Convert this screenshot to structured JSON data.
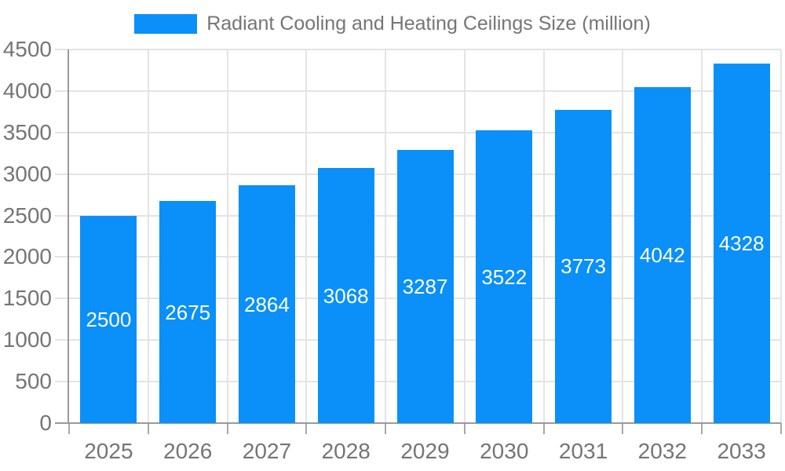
{
  "legend": {
    "label": "Radiant Cooling and Heating Ceilings Size (million)"
  },
  "chart_data": {
    "type": "bar",
    "title": "Radiant Cooling and Heating Ceilings Size (million)",
    "categories": [
      "2025",
      "2026",
      "2027",
      "2028",
      "2029",
      "2030",
      "2031",
      "2032",
      "2033"
    ],
    "values": [
      2500,
      2675,
      2864,
      3068,
      3287,
      3522,
      3773,
      4042,
      4328
    ],
    "xlabel": "",
    "ylabel": "",
    "ylim": [
      0,
      4500
    ],
    "ytick_step": 500,
    "yticks": [
      0,
      500,
      1000,
      1500,
      2000,
      2500,
      3000,
      3500,
      4000,
      4500
    ],
    "grid": true,
    "legend_position": "top",
    "bar_color": "#0a90f8",
    "bar_label_color": "#ffffff",
    "axis_text_color": "#757575",
    "axis_line_color": "#9a9a9a",
    "grid_color": "#e4e4e4",
    "tick_color": "#a8a8a8",
    "background": "#ffffff"
  }
}
